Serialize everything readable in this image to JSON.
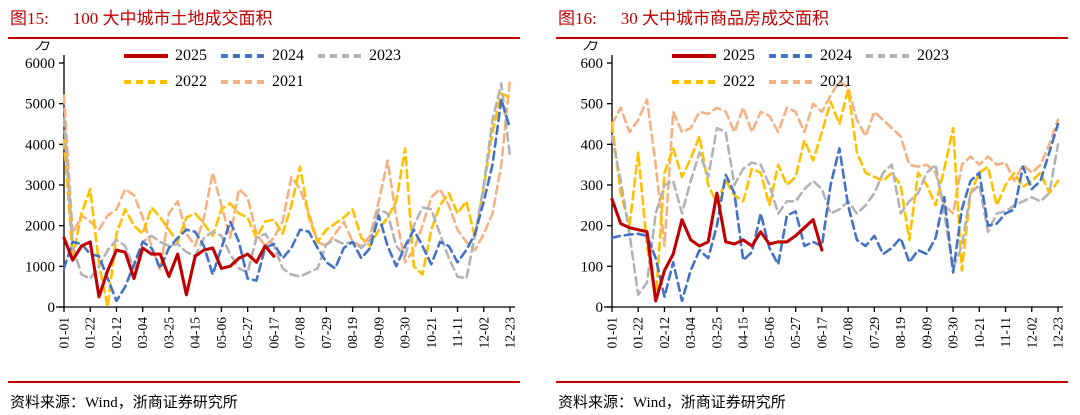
{
  "source_note": "资料来源：Wind，浙商证券研究所",
  "colors": {
    "accent_red": "#c00000",
    "axis": "#000000",
    "series_2025": "#c00000",
    "series_2024": "#4472c4",
    "series_2023": "#b3b3b3",
    "series_2022": "#ffc000",
    "series_2021": "#f4b183"
  },
  "charts": [
    {
      "figure_label": "图15:",
      "title": "100 大中城市土地成交面积",
      "unit_label": "万",
      "y_axis": {
        "min": 0,
        "max": 6000,
        "step": 1000,
        "tick_labels": [
          "0",
          "1000",
          "2000",
          "3000",
          "4000",
          "5000",
          "6000"
        ]
      },
      "x_tick_labels": [
        "01-01",
        "01-22",
        "02-12",
        "03-04",
        "03-25",
        "04-15",
        "05-06",
        "05-27",
        "06-17",
        "07-08",
        "07-29",
        "08-19",
        "09-09",
        "09-30",
        "10-21",
        "11-11",
        "12-02",
        "12-23"
      ],
      "chart_data": {
        "type": "line",
        "x_unit": "week",
        "ylim": [
          0,
          6000
        ],
        "grid": false,
        "legend_position": "top-center",
        "series": [
          {
            "name": "2025",
            "color": "#c00000",
            "dash": false,
            "values": [
              1700,
              1150,
              1500,
              1600,
              250,
              900,
              1400,
              1350,
              700,
              1450,
              1300,
              1300,
              750,
              1300,
              300,
              1250,
              1400,
              1450,
              950,
              1000,
              1200,
              1300,
              1100,
              1500,
              1250
            ]
          },
          {
            "name": "2024",
            "color": "#4472c4",
            "dash": true,
            "values": [
              950,
              1600,
              1550,
              1300,
              1250,
              700,
              150,
              500,
              1050,
              1600,
              1450,
              950,
              1450,
              1700,
              1900,
              1850,
              1500,
              800,
              1450,
              2100,
              1600,
              700,
              650,
              1450,
              1550,
              1200,
              1450,
              1900,
              1850,
              1450,
              1100,
              950,
              1450,
              1600,
              1200,
              1450,
              2250,
              1500,
              1000,
              1500,
              1900,
              1500,
              1050,
              1600,
              1500,
              1100,
              1400,
              1800,
              2600,
              3500,
              5100,
              4400
            ]
          },
          {
            "name": "2023",
            "color": "#b3b3b3",
            "dash": true,
            "values": [
              4650,
              1500,
              800,
              700,
              1000,
              1400,
              1650,
              1500,
              950,
              1600,
              1750,
              1600,
              1500,
              1550,
              1350,
              1250,
              1700,
              1850,
              1750,
              1300,
              950,
              850,
              1700,
              1800,
              1500,
              950,
              800,
              750,
              850,
              950,
              1550,
              1650,
              1550,
              1600,
              1450,
              1650,
              2400,
              2300,
              1500,
              1250,
              2000,
              2450,
              2400,
              1800,
              1200,
              750,
              700,
              1750,
              3000,
              4600,
              5500,
              3700
            ]
          },
          {
            "name": "2022",
            "color": "#ffc000",
            "dash": true,
            "values": [
              4100,
              1200,
              2300,
              2900,
              1050,
              0,
              1800,
              2400,
              2000,
              1800,
              2450,
              2200,
              1900,
              1600,
              2200,
              2300,
              2050,
              1750,
              2400,
              2550,
              2300,
              2200,
              1700,
              2100,
              2150,
              1800,
              2500,
              3450,
              2200,
              1600,
              1900,
              2050,
              2200,
              2400,
              1700,
              1500,
              1900,
              2200,
              2600,
              3900,
              1000,
              800,
              1900,
              2500,
              2800,
              2300,
              2600,
              1700,
              2950,
              4300,
              5250,
              5150
            ]
          },
          {
            "name": "2021",
            "color": "#f4b183",
            "dash": true,
            "values": [
              5200,
              1800,
              2250,
              2100,
              1900,
              2250,
              2400,
              2900,
              2750,
              2200,
              1500,
              900,
              2300,
              2600,
              1800,
              1500,
              2200,
              3300,
              2500,
              1700,
              2900,
              2700,
              1800,
              1500,
              1700,
              2100,
              3200,
              2900,
              2300,
              1600,
              1500,
              1800,
              2100,
              1600,
              1500,
              1750,
              2600,
              3600,
              2200,
              1100,
              1400,
              2000,
              2700,
              2900,
              2500,
              1900,
              1600,
              1400,
              1800,
              2300,
              3500,
              5600
            ]
          }
        ]
      }
    },
    {
      "figure_label": "图16:",
      "title": "30 大中城市商品房成交面积",
      "unit_label": "万",
      "y_axis": {
        "min": 0,
        "max": 600,
        "step": 100,
        "tick_labels": [
          "0",
          "100",
          "200",
          "300",
          "400",
          "500",
          "600"
        ]
      },
      "x_tick_labels": [
        "01-01",
        "01-22",
        "02-12",
        "03-04",
        "03-25",
        "04-15",
        "05-06",
        "05-27",
        "06-17",
        "07-08",
        "07-29",
        "08-19",
        "09-09",
        "09-30",
        "10-21",
        "11-11",
        "12-02",
        "12-23"
      ],
      "chart_data": {
        "type": "line",
        "x_unit": "week",
        "ylim": [
          0,
          600
        ],
        "grid": false,
        "legend_position": "top-center",
        "series": [
          {
            "name": "2025",
            "color": "#c00000",
            "dash": false,
            "values": [
              265,
              205,
              195,
              190,
              185,
              15,
              90,
              130,
              215,
              165,
              150,
              160,
              280,
              160,
              155,
              165,
              150,
              185,
              155,
              160,
              160,
              175,
              195,
              215,
              140
            ]
          },
          {
            "name": "2024",
            "color": "#4472c4",
            "dash": true,
            "values": [
              170,
              175,
              178,
              180,
              175,
              120,
              25,
              110,
              15,
              90,
              140,
              120,
              200,
              325,
              280,
              115,
              135,
              230,
              145,
              105,
              225,
              235,
              150,
              160,
              150,
              300,
              390,
              250,
              165,
              150,
              175,
              130,
              145,
              170,
              110,
              140,
              130,
              170,
              270,
              85,
              240,
              310,
              330,
              200,
              205,
              230,
              240,
              345,
              290,
              310,
              380,
              450
            ]
          },
          {
            "name": "2023",
            "color": "#b3b3b3",
            "dash": true,
            "values": [
              420,
              310,
              180,
              30,
              60,
              230,
              300,
              310,
              230,
              310,
              380,
              320,
              440,
              430,
              300,
              340,
              355,
              350,
              300,
              230,
              260,
              260,
              290,
              310,
              290,
              230,
              240,
              260,
              230,
              250,
              280,
              330,
              350,
              230,
              260,
              280,
              330,
              350,
              230,
              95,
              150,
              280,
              300,
              185,
              230,
              235,
              250,
              260,
              270,
              260,
              280,
              400
            ]
          },
          {
            "name": "2022",
            "color": "#ffc000",
            "dash": true,
            "values": [
              450,
              280,
              200,
              380,
              150,
              15,
              330,
              390,
              320,
              365,
              420,
              300,
              255,
              310,
              275,
              260,
              340,
              330,
              250,
              350,
              300,
              320,
              410,
              360,
              430,
              505,
              450,
              535,
              380,
              330,
              320,
              310,
              330,
              300,
              165,
              330,
              300,
              250,
              340,
              440,
              90,
              280,
              330,
              345,
              250,
              300,
              330,
              295,
              310,
              330,
              280,
              310
            ]
          },
          {
            "name": "2021",
            "color": "#f4b183",
            "dash": true,
            "values": [
              450,
              490,
              430,
              460,
              510,
              350,
              150,
              480,
              430,
              440,
              480,
              475,
              490,
              480,
              430,
              490,
              430,
              480,
              470,
              430,
              490,
              480,
              430,
              500,
              480,
              520,
              555,
              540,
              460,
              420,
              480,
              460,
              440,
              420,
              350,
              345,
              350,
              330,
              250,
              230,
              350,
              370,
              350,
              370,
              350,
              355,
              310,
              350,
              330,
              350,
              400,
              460
            ]
          }
        ]
      }
    }
  ]
}
